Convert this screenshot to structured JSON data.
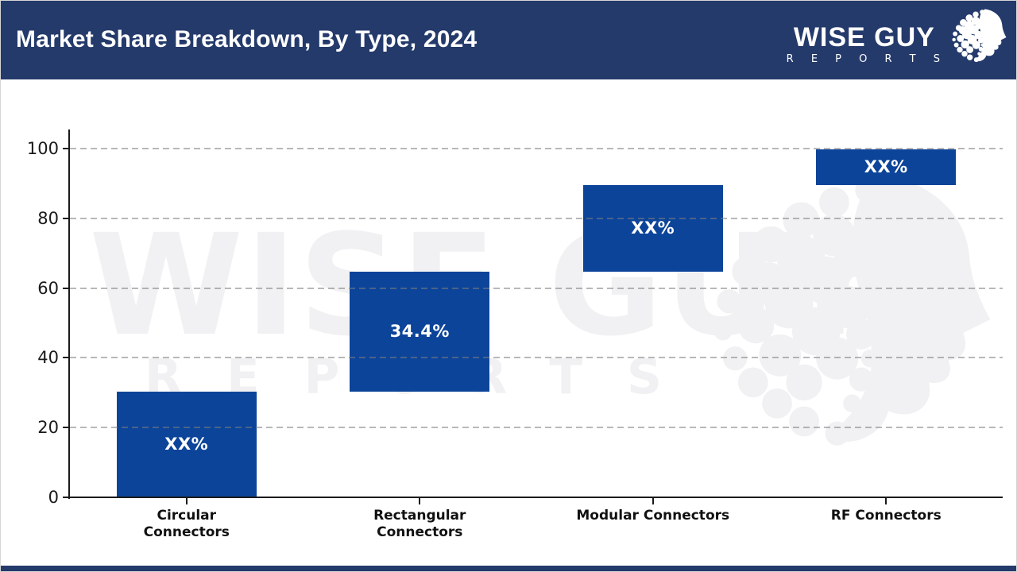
{
  "header": {
    "title": "Market Share Breakdown, By Type, 2024",
    "logo": {
      "name": "WISE GUY",
      "tagline": "R E P O R T S"
    }
  },
  "watermark": {
    "line1": "WISE GUY",
    "line2": "REPORTS"
  },
  "colors": {
    "navy": "#243A6B",
    "bar_blue": "#0C4499",
    "axis": "#1a1a1a",
    "grid": "rgba(125,125,125,0.55)",
    "watermark_gray": "#f1f1f3",
    "bar_label": "#ffffff"
  },
  "chart_data": {
    "type": "bar",
    "subtype": "floating-waterfall",
    "title": "Market Share Breakdown, By Type, 2024",
    "categories": [
      "Circular\nConnectors",
      "Rectangular\nConnectors",
      "Modular Connectors",
      "RF Connectors"
    ],
    "bars": [
      {
        "category": "Circular Connectors",
        "start": 0,
        "end": 30.4,
        "label": "XX%"
      },
      {
        "category": "Rectangular Connectors",
        "start": 30.4,
        "end": 64.8,
        "label": "34.4%"
      },
      {
        "category": "Modular Connectors",
        "start": 64.8,
        "end": 89.5,
        "label": "XX%"
      },
      {
        "category": "RF Connectors",
        "start": 89.5,
        "end": 99.8,
        "label": "XX%"
      }
    ],
    "yticks": [
      0,
      20,
      40,
      60,
      80,
      100
    ],
    "ylim": [
      0,
      105.5
    ],
    "xlabel": "",
    "ylabel": "",
    "grid": "horizontal-dashed-over-bars",
    "legend": "none"
  }
}
